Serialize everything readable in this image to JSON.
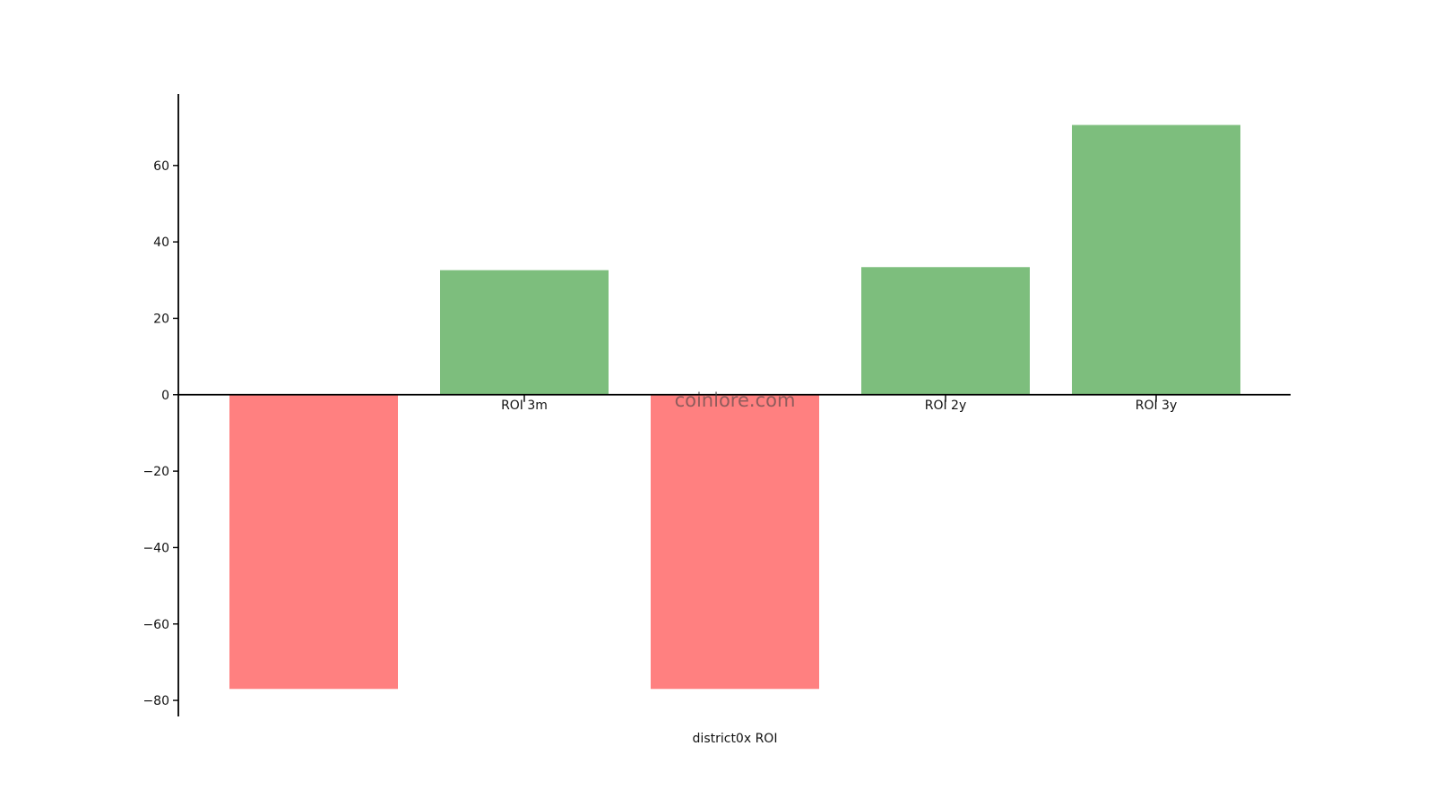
{
  "chart_data": {
    "type": "bar",
    "title": "",
    "xlabel": "district0x ROI",
    "ylabel": "",
    "categories": [
      "",
      "ROI 3m",
      "",
      "ROI 2y",
      "ROI 3y"
    ],
    "values": [
      -77,
      32.6,
      -77,
      33.4,
      70.6
    ],
    "series_note": "labels of the two red (negative) bars are hidden behind the bars in the rendering",
    "y_ticks": [
      60,
      40,
      20,
      0,
      -20,
      -40,
      -60,
      -80
    ],
    "ylim": [
      -84.2,
      78.7
    ],
    "grid": false,
    "legend": null,
    "positive_color": "#7dbe7d",
    "negative_color": "#ff8080",
    "axis_color": "#000000",
    "text_color": "#111111"
  },
  "watermark": {
    "text": "coinlore.com",
    "color": "rgba(68,68,68,0.6)"
  }
}
